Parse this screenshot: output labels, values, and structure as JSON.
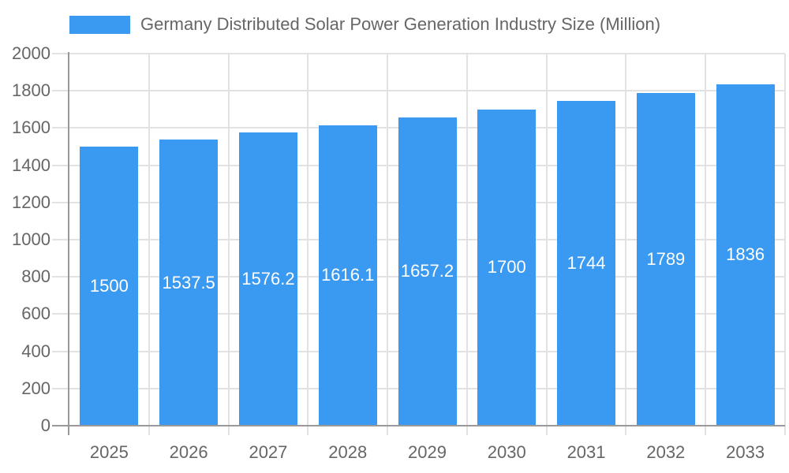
{
  "chart_data": {
    "type": "bar",
    "title": "Germany Distributed Solar Power Generation Industry Size (Million)",
    "series_name": "Germany Distributed Solar Power Generation Industry Size (Million)",
    "categories": [
      "2025",
      "2026",
      "2027",
      "2028",
      "2029",
      "2030",
      "2031",
      "2032",
      "2033"
    ],
    "values": [
      1500,
      1537.5,
      1576.2,
      1616.1,
      1657.2,
      1700,
      1744,
      1789,
      1836
    ],
    "value_labels": [
      "1500",
      "1537.5",
      "1576.2",
      "1616.1",
      "1657.2",
      "1700",
      "1744",
      "1789",
      "1836"
    ],
    "xlabel": "",
    "ylabel": "",
    "ylim": [
      0,
      2000
    ],
    "yticks": [
      0,
      200,
      400,
      600,
      800,
      1000,
      1200,
      1400,
      1600,
      1800,
      2000
    ],
    "grid": true,
    "legend_position": "top-left",
    "value_labels_position": "inside-center",
    "colors": {
      "bar": "#3A99F0",
      "grid": "#E2E2E2",
      "axis_line": "#999999",
      "axis_text": "#666666",
      "value_label": "#FFFFFF",
      "background": "#FFFFFF"
    }
  }
}
